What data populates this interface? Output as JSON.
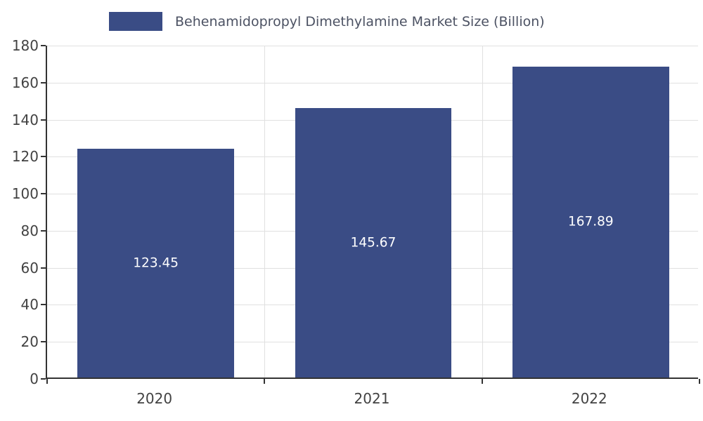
{
  "chart_data": {
    "type": "bar",
    "title": "Behenamidopropyl Dimethylamine Market Size (Billion)",
    "categories": [
      "2020",
      "2021",
      "2022"
    ],
    "values": [
      123.45,
      145.67,
      167.89
    ],
    "value_labels": [
      "123.45",
      "145.67",
      "167.89"
    ],
    "xlabel": "",
    "ylabel": "",
    "ylim": [
      0,
      180
    ],
    "yticks": [
      0,
      20,
      40,
      60,
      80,
      100,
      120,
      140,
      160,
      180
    ],
    "grid": true,
    "legend_position": "top",
    "colors": {
      "bar": "#3A4C85",
      "bar_label": "#ffffff",
      "grid": "#e0e0e0",
      "axis": "#333333",
      "tick_label": "#424242",
      "title": "#4c5263"
    }
  }
}
